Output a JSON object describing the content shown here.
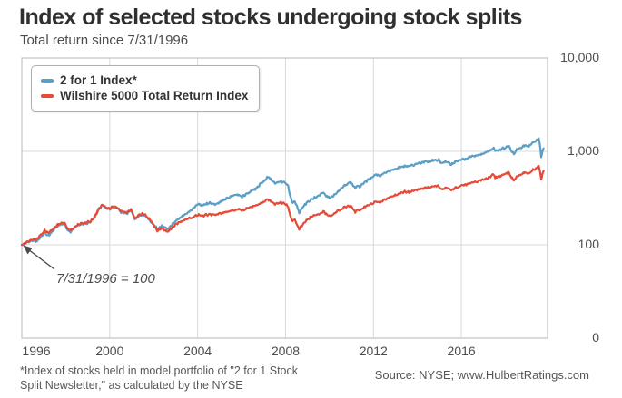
{
  "header": {
    "title": "Index of selected stocks undergoing stock splits",
    "subtitle": "Total return since 7/31/1996"
  },
  "legend": {
    "items": [
      {
        "label": "2 for 1 Index*",
        "color": "#5b9ec6"
      },
      {
        "label": "Wilshire 5000 Total Return Index",
        "color": "#e64b38"
      }
    ]
  },
  "annotation": {
    "text": "7/31/1996 = 100"
  },
  "footer": {
    "footnote_line1": "*Index of stocks held in model portfolio of \"2 for 1 Stock",
    "footnote_line2": "Split Newsletter,\" as calculated by the NYSE",
    "source": "Source: NYSE; www.HulbertRatings.com"
  },
  "chart_data": {
    "type": "line",
    "title": "Index of selected stocks undergoing stock splits",
    "subtitle": "Total return since 7/31/1996",
    "xlabel": "",
    "ylabel": "",
    "x_axis": {
      "range": [
        1996.58,
        2020.5
      ],
      "ticks": [
        {
          "label": "1996",
          "t": 1996.58
        },
        {
          "label": "2000",
          "t": 2000.58
        },
        {
          "label": "2004",
          "t": 2004.58
        },
        {
          "label": "2008",
          "t": 2008.58
        },
        {
          "label": "2012",
          "t": 2012.58
        },
        {
          "label": "2016",
          "t": 2016.58
        }
      ],
      "grid": true
    },
    "y_axis": {
      "scale": "log",
      "base_note": "7/31/1996 = 100",
      "ticks": [
        {
          "label": "10,000",
          "value": 10000
        },
        {
          "label": "1,000",
          "value": 1000
        },
        {
          "label": "100",
          "value": 100
        },
        {
          "label": "0",
          "value": 0
        }
      ],
      "grid": true,
      "labels_position": "right"
    },
    "series": [
      {
        "name": "2 for 1 Index*",
        "color": "#5b9ec6",
        "points": [
          [
            1996.58,
            100
          ],
          [
            1996.8,
            105
          ],
          [
            1997.1,
            112
          ],
          [
            1997.2,
            107
          ],
          [
            1997.45,
            122
          ],
          [
            1997.62,
            134
          ],
          [
            1997.8,
            126
          ],
          [
            1998.0,
            142
          ],
          [
            1998.28,
            164
          ],
          [
            1998.5,
            168
          ],
          [
            1998.65,
            146
          ],
          [
            1998.8,
            138
          ],
          [
            1999.0,
            154
          ],
          [
            1999.2,
            164
          ],
          [
            1999.45,
            168
          ],
          [
            1999.7,
            174
          ],
          [
            1999.9,
            198
          ],
          [
            2000.1,
            242
          ],
          [
            2000.25,
            266
          ],
          [
            2000.4,
            248
          ],
          [
            2000.6,
            240
          ],
          [
            2000.75,
            256
          ],
          [
            2000.9,
            249
          ],
          [
            2001.1,
            224
          ],
          [
            2001.35,
            217
          ],
          [
            2001.55,
            234
          ],
          [
            2001.72,
            186
          ],
          [
            2001.9,
            203
          ],
          [
            2002.1,
            210
          ],
          [
            2002.3,
            196
          ],
          [
            2002.55,
            165
          ],
          [
            2002.75,
            150
          ],
          [
            2002.95,
            160
          ],
          [
            2003.2,
            147
          ],
          [
            2003.45,
            168
          ],
          [
            2003.7,
            188
          ],
          [
            2004.0,
            210
          ],
          [
            2004.3,
            235
          ],
          [
            2004.6,
            273
          ],
          [
            2004.8,
            265
          ],
          [
            2005.1,
            280
          ],
          [
            2005.4,
            272
          ],
          [
            2005.75,
            300
          ],
          [
            2006.1,
            330
          ],
          [
            2006.45,
            345
          ],
          [
            2006.6,
            325
          ],
          [
            2006.9,
            360
          ],
          [
            2007.2,
            395
          ],
          [
            2007.45,
            450
          ],
          [
            2007.6,
            480
          ],
          [
            2007.78,
            535
          ],
          [
            2007.95,
            490
          ],
          [
            2008.1,
            460
          ],
          [
            2008.35,
            475
          ],
          [
            2008.55,
            468
          ],
          [
            2008.7,
            420
          ],
          [
            2008.8,
            330
          ],
          [
            2008.9,
            280
          ],
          [
            2009.0,
            295
          ],
          [
            2009.1,
            255
          ],
          [
            2009.2,
            219
          ],
          [
            2009.35,
            250
          ],
          [
            2009.5,
            275
          ],
          [
            2009.7,
            300
          ],
          [
            2009.9,
            320
          ],
          [
            2010.1,
            335
          ],
          [
            2010.3,
            360
          ],
          [
            2010.5,
            325
          ],
          [
            2010.65,
            318
          ],
          [
            2010.8,
            345
          ],
          [
            2011.0,
            380
          ],
          [
            2011.2,
            420
          ],
          [
            2011.4,
            450
          ],
          [
            2011.55,
            470
          ],
          [
            2011.65,
            430
          ],
          [
            2011.75,
            400
          ],
          [
            2011.85,
            430
          ],
          [
            2011.95,
            415
          ],
          [
            2012.1,
            450
          ],
          [
            2012.3,
            490
          ],
          [
            2012.55,
            530
          ],
          [
            2012.7,
            560
          ],
          [
            2012.85,
            545
          ],
          [
            2013.1,
            590
          ],
          [
            2013.4,
            630
          ],
          [
            2013.7,
            665
          ],
          [
            2014.0,
            700
          ],
          [
            2014.2,
            690
          ],
          [
            2014.5,
            730
          ],
          [
            2014.8,
            760
          ],
          [
            2015.05,
            780
          ],
          [
            2015.3,
            800
          ],
          [
            2015.55,
            810
          ],
          [
            2015.7,
            745
          ],
          [
            2015.85,
            775
          ],
          [
            2016.0,
            770
          ],
          [
            2016.12,
            720
          ],
          [
            2016.3,
            780
          ],
          [
            2016.5,
            800
          ],
          [
            2016.58,
            810
          ],
          [
            2016.8,
            835
          ],
          [
            2017.0,
            870
          ],
          [
            2017.3,
            910
          ],
          [
            2017.6,
            950
          ],
          [
            2017.9,
            1020
          ],
          [
            2018.05,
            1090
          ],
          [
            2018.12,
            1000
          ],
          [
            2018.3,
            1030
          ],
          [
            2018.5,
            1080
          ],
          [
            2018.72,
            1150
          ],
          [
            2018.85,
            1020
          ],
          [
            2018.97,
            945
          ],
          [
            2019.1,
            1040
          ],
          [
            2019.3,
            1100
          ],
          [
            2019.5,
            1160
          ],
          [
            2019.65,
            1130
          ],
          [
            2019.8,
            1220
          ],
          [
            2019.95,
            1280
          ],
          [
            2020.1,
            1380
          ],
          [
            2020.15,
            1200
          ],
          [
            2020.21,
            880
          ],
          [
            2020.27,
            1000
          ],
          [
            2020.32,
            1080
          ]
        ]
      },
      {
        "name": "Wilshire 5000 Total Return Index",
        "color": "#e64b38",
        "points": [
          [
            1996.58,
            100
          ],
          [
            1996.8,
            106
          ],
          [
            1997.1,
            116
          ],
          [
            1997.2,
            111
          ],
          [
            1997.45,
            128
          ],
          [
            1997.62,
            142
          ],
          [
            1997.8,
            134
          ],
          [
            1998.0,
            148
          ],
          [
            1998.28,
            168
          ],
          [
            1998.5,
            175
          ],
          [
            1998.65,
            150
          ],
          [
            1998.8,
            142
          ],
          [
            1999.0,
            158
          ],
          [
            1999.2,
            168
          ],
          [
            1999.45,
            172
          ],
          [
            1999.7,
            178
          ],
          [
            1999.9,
            200
          ],
          [
            2000.1,
            245
          ],
          [
            2000.25,
            273
          ],
          [
            2000.4,
            252
          ],
          [
            2000.6,
            245
          ],
          [
            2000.75,
            260
          ],
          [
            2000.9,
            252
          ],
          [
            2001.1,
            228
          ],
          [
            2001.35,
            222
          ],
          [
            2001.55,
            238
          ],
          [
            2001.72,
            192
          ],
          [
            2001.9,
            208
          ],
          [
            2002.1,
            215
          ],
          [
            2002.3,
            198
          ],
          [
            2002.55,
            168
          ],
          [
            2002.75,
            141
          ],
          [
            2002.95,
            150
          ],
          [
            2003.2,
            138
          ],
          [
            2003.45,
            155
          ],
          [
            2003.7,
            172
          ],
          [
            2004.0,
            185
          ],
          [
            2004.3,
            195
          ],
          [
            2004.6,
            209
          ],
          [
            2004.8,
            204
          ],
          [
            2005.1,
            212
          ],
          [
            2005.4,
            208
          ],
          [
            2005.75,
            220
          ],
          [
            2006.1,
            232
          ],
          [
            2006.45,
            240
          ],
          [
            2006.6,
            232
          ],
          [
            2006.9,
            248
          ],
          [
            2007.2,
            262
          ],
          [
            2007.45,
            278
          ],
          [
            2007.6,
            290
          ],
          [
            2007.78,
            306
          ],
          [
            2007.95,
            288
          ],
          [
            2008.1,
            272
          ],
          [
            2008.35,
            282
          ],
          [
            2008.55,
            278
          ],
          [
            2008.7,
            252
          ],
          [
            2008.8,
            205
          ],
          [
            2008.9,
            178
          ],
          [
            2009.0,
            188
          ],
          [
            2009.1,
            165
          ],
          [
            2009.2,
            146
          ],
          [
            2009.35,
            165
          ],
          [
            2009.5,
            180
          ],
          [
            2009.7,
            195
          ],
          [
            2009.9,
            205
          ],
          [
            2010.1,
            215
          ],
          [
            2010.3,
            228
          ],
          [
            2010.5,
            208
          ],
          [
            2010.65,
            204
          ],
          [
            2010.8,
            218
          ],
          [
            2011.0,
            235
          ],
          [
            2011.2,
            248
          ],
          [
            2011.4,
            258
          ],
          [
            2011.55,
            262
          ],
          [
            2011.65,
            240
          ],
          [
            2011.75,
            222
          ],
          [
            2011.85,
            238
          ],
          [
            2011.95,
            230
          ],
          [
            2012.1,
            248
          ],
          [
            2012.3,
            262
          ],
          [
            2012.55,
            278
          ],
          [
            2012.7,
            290
          ],
          [
            2012.85,
            285
          ],
          [
            2013.1,
            305
          ],
          [
            2013.4,
            330
          ],
          [
            2013.7,
            350
          ],
          [
            2014.0,
            370
          ],
          [
            2014.2,
            365
          ],
          [
            2014.5,
            385
          ],
          [
            2014.8,
            400
          ],
          [
            2015.05,
            410
          ],
          [
            2015.3,
            420
          ],
          [
            2015.55,
            425
          ],
          [
            2015.7,
            392
          ],
          [
            2015.85,
            408
          ],
          [
            2016.0,
            405
          ],
          [
            2016.12,
            382
          ],
          [
            2016.3,
            408
          ],
          [
            2016.5,
            420
          ],
          [
            2016.58,
            428
          ],
          [
            2016.8,
            440
          ],
          [
            2017.0,
            458
          ],
          [
            2017.3,
            478
          ],
          [
            2017.6,
            498
          ],
          [
            2017.9,
            532
          ],
          [
            2018.05,
            568
          ],
          [
            2018.12,
            522
          ],
          [
            2018.3,
            538
          ],
          [
            2018.5,
            562
          ],
          [
            2018.72,
            595
          ],
          [
            2018.85,
            530
          ],
          [
            2018.97,
            488
          ],
          [
            2019.1,
            538
          ],
          [
            2019.3,
            568
          ],
          [
            2019.5,
            598
          ],
          [
            2019.65,
            582
          ],
          [
            2019.8,
            625
          ],
          [
            2019.95,
            652
          ],
          [
            2020.1,
            705
          ],
          [
            2020.15,
            610
          ],
          [
            2020.21,
            500
          ],
          [
            2020.27,
            570
          ],
          [
            2020.32,
            615
          ]
        ]
      }
    ]
  }
}
